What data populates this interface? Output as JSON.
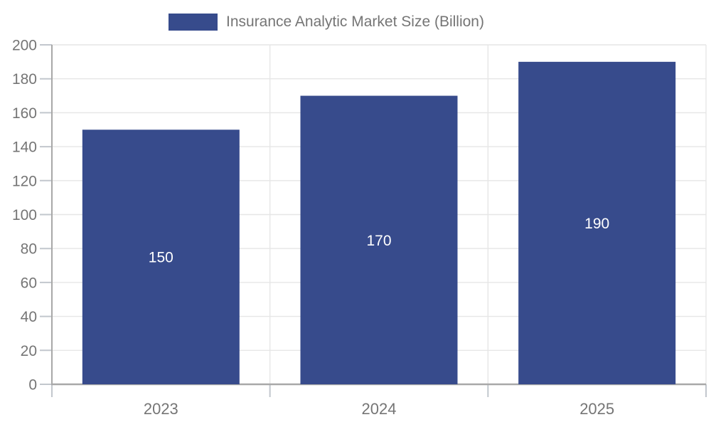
{
  "legend": {
    "label": "Insurance Analytic Market Size (Billion)"
  },
  "chart_data": {
    "type": "bar",
    "title": "Insurance Analytic Market Size (Billion)",
    "categories": [
      "2023",
      "2024",
      "2025"
    ],
    "values": [
      150,
      170,
      190
    ],
    "bar_value_labels": [
      "150",
      "170",
      "190"
    ],
    "xlabel": "",
    "ylabel": "",
    "ylim": [
      0,
      200
    ],
    "ytick_step": 20,
    "ytick_labels": [
      "0",
      "20",
      "40",
      "60",
      "80",
      "100",
      "120",
      "140",
      "160",
      "180",
      "200"
    ],
    "grid": true,
    "legend_position": "top",
    "colors": {
      "bar": "#374B8C",
      "bar_label_text": "#ffffff",
      "axis_text": "#757575",
      "axis_line": "#a8a8a8",
      "gridline": "#e6e6e6",
      "tick": "#c2c7cd"
    }
  }
}
